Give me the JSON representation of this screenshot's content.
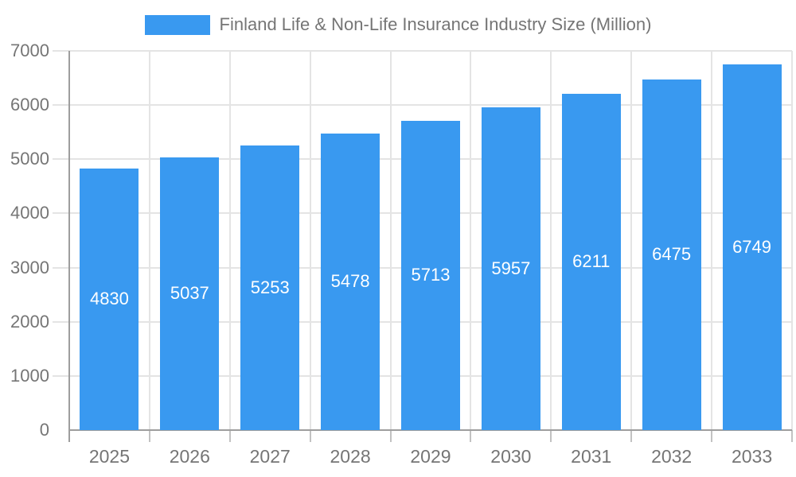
{
  "page": {
    "background": "#ffffff"
  },
  "legend": {
    "label": "Finland Life & Non-Life Insurance Industry Size (Million)",
    "swatch_color": "#3999f0"
  },
  "chart_data": {
    "type": "bar",
    "title": "Finland Life & Non-Life Insurance Industry Size (Million)",
    "series_name": "Finland Life & Non-Life Insurance Industry Size (Million)",
    "categories": [
      "2025",
      "2026",
      "2027",
      "2028",
      "2029",
      "2030",
      "2031",
      "2032",
      "2033"
    ],
    "values": [
      4830,
      5037,
      5253,
      5478,
      5713,
      5957,
      6211,
      6475,
      6749
    ],
    "data_labels_shown": true,
    "xlabel": "",
    "ylabel": "",
    "ylim": [
      0,
      7000
    ],
    "yticks": [
      0,
      1000,
      2000,
      3000,
      4000,
      5000,
      6000,
      7000
    ],
    "grid": true,
    "legend_position": "top-center",
    "bar_color": "#3999f0",
    "bar_label_color": "#ffffff",
    "axis_text_color": "#757575",
    "gridline_color": "#e4e4e4",
    "axis_line_color": "#9e9e9e",
    "tick_color": "#c2c2c2"
  }
}
